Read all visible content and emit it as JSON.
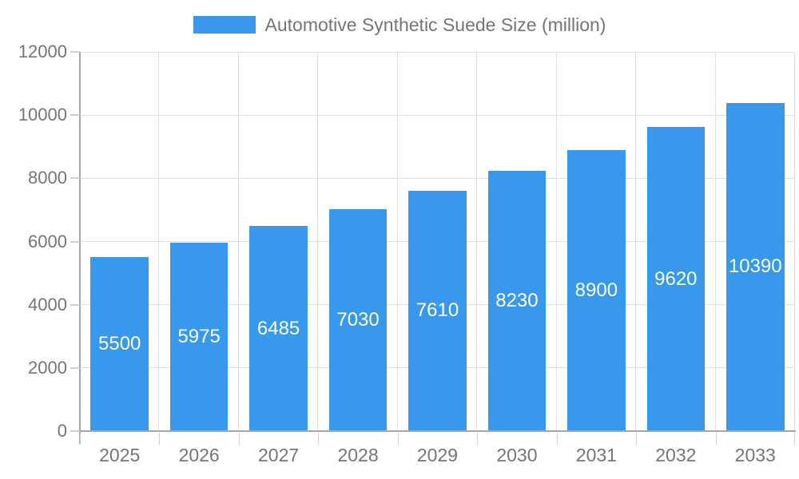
{
  "legend": {
    "label": "Automotive Synthetic Suede Size (million)"
  },
  "chart_data": {
    "type": "bar",
    "title": "Automotive Synthetic Suede Size (million)",
    "categories": [
      "2025",
      "2026",
      "2027",
      "2028",
      "2029",
      "2030",
      "2031",
      "2032",
      "2033"
    ],
    "values": [
      5500,
      5975,
      6485,
      7030,
      7610,
      8230,
      8900,
      9620,
      10390
    ],
    "bar_labels": [
      "5500",
      "5975",
      "6485",
      "7030",
      "7610",
      "8230",
      "8900",
      "9620",
      "10390"
    ],
    "xlabel": "",
    "ylabel": "",
    "ylim": [
      0,
      12000
    ],
    "yticks": [
      0,
      2000,
      4000,
      6000,
      8000,
      10000,
      12000
    ],
    "grid": true,
    "legend_position": "top",
    "bar_label_position": "inside-center",
    "colors": {
      "bar": "#3898EC",
      "bar_label": "#FFFFFF",
      "axis_text": "#757575",
      "gridline": "#E0E0E0",
      "axis_line": "#A6A6A6",
      "tick": "#CFCFCF",
      "background": "#FFFFFF"
    }
  }
}
